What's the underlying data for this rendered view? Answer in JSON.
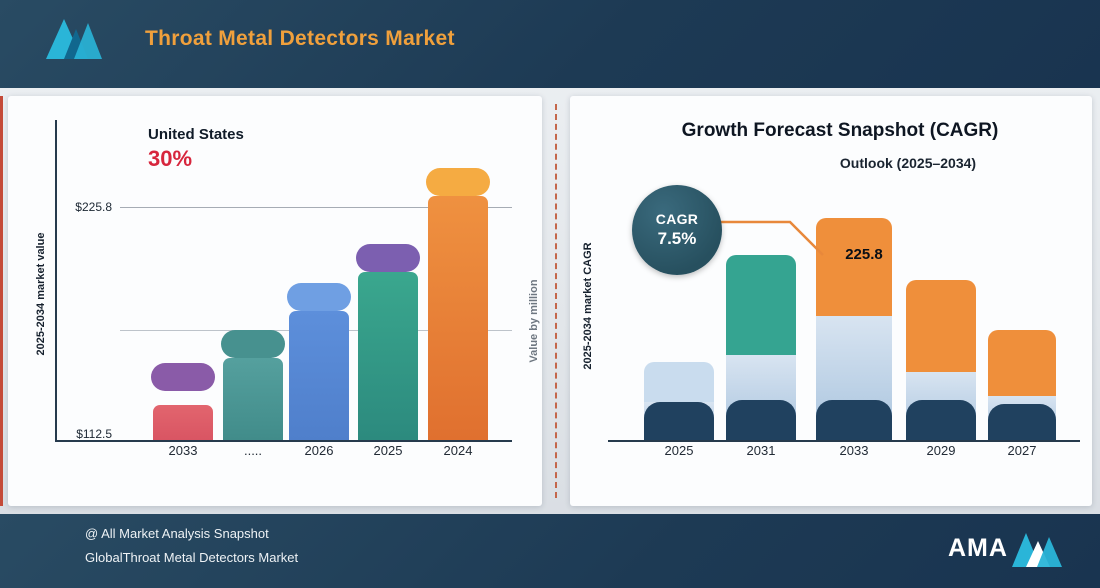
{
  "header": {
    "title": "Throat Metal Detectors Market",
    "logo": "ama-logo"
  },
  "footer": {
    "line1": "@ All Market Analysis Snapshot",
    "line2": "GlobalThroat Metal Detectors Market",
    "brand": "AMA"
  },
  "colors": {
    "header_navy": "#1e3c57",
    "title_orange": "#f0a03c",
    "highlight_red": "#d7263d",
    "divider_dash": "#c4674b",
    "cagr_badge_fill": "#2d5767",
    "callout_orange": "#e8883b",
    "base_navy": "#20415f",
    "mid_lightblue": "#bcd2e7"
  },
  "chart_data": [
    {
      "type": "bar",
      "title": "United States",
      "highlight": "30%",
      "ylabel": "2025-2034 market value",
      "unit_note": "Value by million",
      "ylim": [
        112.5,
        250
      ],
      "grid": true,
      "yticks": [
        {
          "label": "$225.8",
          "value": 225.8
        },
        {
          "label": "$112.5",
          "value": 112.5
        }
      ],
      "categories": [
        "2033",
        ".....",
        "2026",
        "2025",
        "2024"
      ],
      "values": [
        150,
        166,
        189,
        208,
        245
      ],
      "bar_styles": [
        {
          "bar_color": "#e2656e",
          "bar_color2": "#d95563",
          "cap_color": "#8a5ba8",
          "floating_cap": true
        },
        {
          "bar_color": "#55a09e",
          "bar_color2": "#418c8a",
          "cap_color": "#47918f",
          "floating_cap": false
        },
        {
          "bar_color": "#5d8fdb",
          "bar_color2": "#4f7fcb",
          "cap_color": "#6f9fe3",
          "floating_cap": false
        },
        {
          "bar_color": "#3aa78e",
          "bar_color2": "#2c8a7e",
          "cap_color": "#7c5fb0",
          "floating_cap": false
        },
        {
          "bar_color": "#ef9140",
          "bar_color2": "#e0702f",
          "cap_color": "#f5ab42",
          "floating_cap": false
        }
      ]
    },
    {
      "type": "stacked-bar",
      "title": "Growth Forecast Snapshot (CAGR)",
      "subtitle": "Outlook (2025–2034)",
      "ylabel": "2025-2034 market CAGR",
      "cagr_badge": {
        "label": "CAGR",
        "value": "7.5%"
      },
      "data_label": {
        "text": "225.8",
        "category": "2033"
      },
      "categories": [
        "2025",
        "2031",
        "2033",
        "2029",
        "2027"
      ],
      "bars": [
        {
          "category": "2025",
          "top_color": "#c9dcee",
          "top_h": 40,
          "mid_h": 0,
          "base_h": 38
        },
        {
          "category": "2031",
          "top_color": "#35a491",
          "top_h": 100,
          "mid_h": 45,
          "base_h": 40
        },
        {
          "category": "2033",
          "top_color": "#ef8f3b",
          "top_h": 98,
          "mid_h": 84,
          "base_h": 40
        },
        {
          "category": "2029",
          "top_color": "#ef8f3b",
          "top_h": 92,
          "mid_h": 28,
          "base_h": 40
        },
        {
          "category": "2027",
          "top_color": "#ef8f3b",
          "top_h": 66,
          "mid_h": 8,
          "base_h": 36
        }
      ]
    }
  ]
}
